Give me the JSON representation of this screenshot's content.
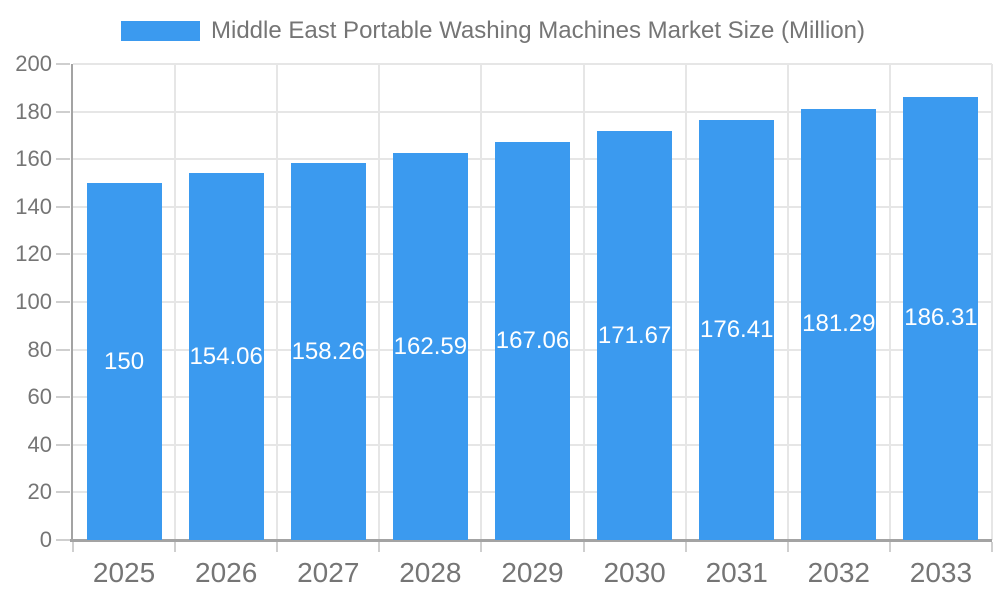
{
  "chart_data": {
    "type": "bar",
    "title": "Middle East Portable Washing Machines Market Size (Million)",
    "categories": [
      "2025",
      "2026",
      "2027",
      "2028",
      "2029",
      "2030",
      "2031",
      "2032",
      "2033"
    ],
    "series": [
      {
        "name": "Middle East Portable Washing Machines Market Size (Million)",
        "values": [
          150,
          154.06,
          158.26,
          162.59,
          167.06,
          171.67,
          176.41,
          181.29,
          186.31
        ]
      }
    ],
    "bar_labels": [
      "150",
      "154.06",
      "158.26",
      "162.59",
      "167.06",
      "171.67",
      "176.41",
      "181.29",
      "186.31"
    ],
    "xlabel": "",
    "ylabel": "",
    "ylim": [
      0,
      200
    ],
    "y_ticks": [
      0,
      20,
      40,
      60,
      80,
      100,
      120,
      140,
      160,
      180,
      200
    ],
    "grid": true,
    "legend_position": "top",
    "colors": {
      "bar": "#3B9AEF",
      "bar_label": "#FFFFFF",
      "axis_label": "#757575",
      "legend_label": "#757575",
      "axis_line": "#A3A3A3",
      "gridline": "#E6E6E6",
      "tick": "#CFCFCF",
      "background": "#FFFFFF"
    }
  }
}
